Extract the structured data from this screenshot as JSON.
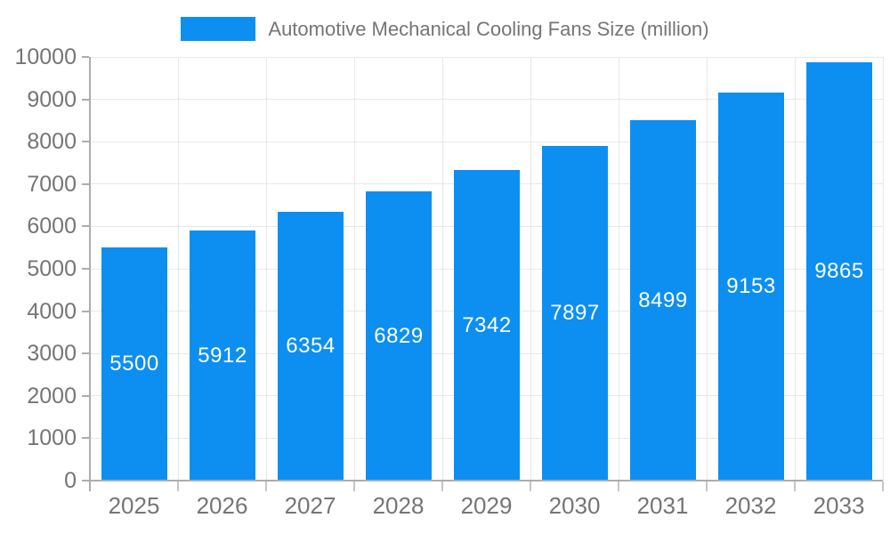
{
  "chart_data": {
    "type": "bar",
    "title": "Automotive Mechanical Cooling Fans Size (million)",
    "xlabel": "",
    "ylabel": "",
    "categories": [
      "2025",
      "2026",
      "2027",
      "2028",
      "2029",
      "2030",
      "2031",
      "2032",
      "2033"
    ],
    "values": [
      5500,
      5912,
      6354,
      6829,
      7342,
      7897,
      8499,
      9153,
      9865
    ],
    "ylim": [
      0,
      10000
    ],
    "ytick_step": 1000,
    "grid": true,
    "legend_position": "top",
    "value_label_position": "inside-center",
    "colors": {
      "bar": "#0d8ff2",
      "grid": "#e8e8e8",
      "axis": "#adadad",
      "minor_tick": "#c6c6c6",
      "tick_text": "#757575",
      "value_text": "#ffffff",
      "background": "#ffffff"
    }
  }
}
